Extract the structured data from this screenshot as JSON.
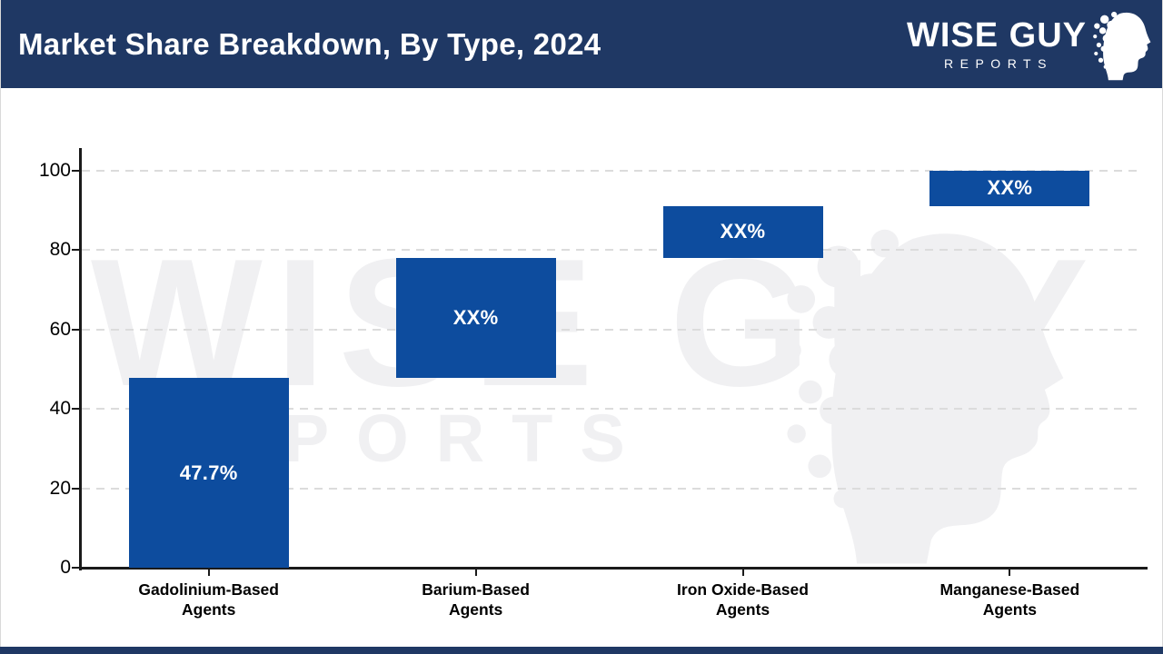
{
  "header": {
    "title": "Market Share Breakdown, By Type, 2024",
    "logo": {
      "line1": "WISE GUY",
      "line2": "REPORTS"
    }
  },
  "watermark": {
    "line1": "WISE GUY",
    "line2": "REPORTS"
  },
  "colors": {
    "header_bg": "#1f3864",
    "footer_bg": "#1f3864",
    "bar": "#0d4c9e",
    "grid": "#dcdcdc",
    "axis": "#1a1a1a",
    "watermark": "#f0f0f2"
  },
  "chart_data": {
    "type": "bar",
    "subtype": "floating-waterfall-percentage",
    "title": "Market Share Breakdown, By Type, 2024",
    "categories": [
      "Gadolinium-Based Agents",
      "Barium-Based Agents",
      "Iron Oxide-Based Agents",
      "Manganese-Based Agents"
    ],
    "bars": [
      {
        "category": "Gadolinium-Based Agents",
        "label_lines": [
          "Gadolinium-Based",
          "Agents"
        ],
        "start": 0,
        "end": 47.7,
        "value": 47.7,
        "label": "47.7%"
      },
      {
        "category": "Barium-Based Agents",
        "label_lines": [
          "Barium-Based",
          "Agents"
        ],
        "start": 47.7,
        "end": 78.0,
        "value": 30.3,
        "label": "XX%"
      },
      {
        "category": "Iron Oxide-Based Agents",
        "label_lines": [
          "Iron Oxide-Based",
          "Agents"
        ],
        "start": 78.0,
        "end": 91.0,
        "value": 13.0,
        "label": "XX%"
      },
      {
        "category": "Manganese-Based Agents",
        "label_lines": [
          "Manganese-Based",
          "Agents"
        ],
        "start": 91.0,
        "end": 100.0,
        "value": 9.0,
        "label": "XX%"
      }
    ],
    "y_ticks": [
      0,
      20,
      40,
      60,
      80,
      100
    ],
    "ylim": [
      0,
      105
    ],
    "xlabel": "",
    "ylabel": "",
    "grid": "horizontal-dashed",
    "legend": "none"
  }
}
